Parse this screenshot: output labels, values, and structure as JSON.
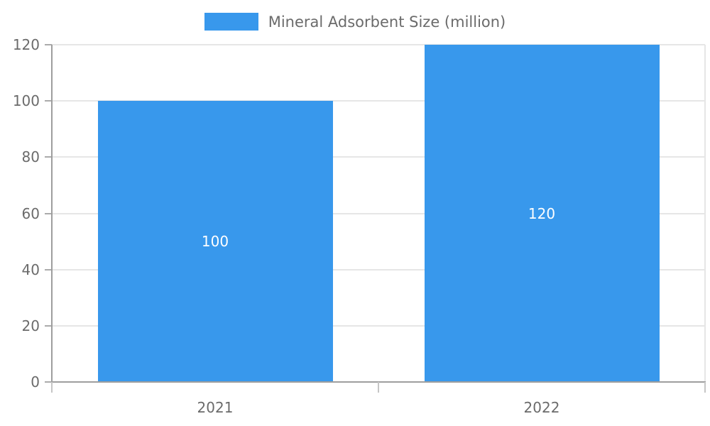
{
  "legend": {
    "label": "Mineral Adsorbent Size (million)"
  },
  "chart_data": {
    "type": "bar",
    "categories": [
      "2021",
      "2022"
    ],
    "series": [
      {
        "name": "Mineral Adsorbent Size (million)",
        "values": [
          100,
          120
        ]
      }
    ],
    "bar_labels": [
      "100",
      "120"
    ],
    "title": "",
    "xlabel": "",
    "ylabel": "",
    "ylim": [
      0,
      120
    ],
    "yticks": [
      0,
      20,
      40,
      60,
      80,
      100,
      120
    ],
    "grid": true,
    "legend_position": "top"
  },
  "colors": {
    "bar": "#3898ec",
    "grid": "#e6e6e6",
    "axis": "#9e9e9e",
    "y_tick": "#ababab",
    "x_tick": "#c6c6c6",
    "text": "#6b6b6b",
    "bar_label_text": "#ffffff",
    "background": "#ffffff"
  }
}
